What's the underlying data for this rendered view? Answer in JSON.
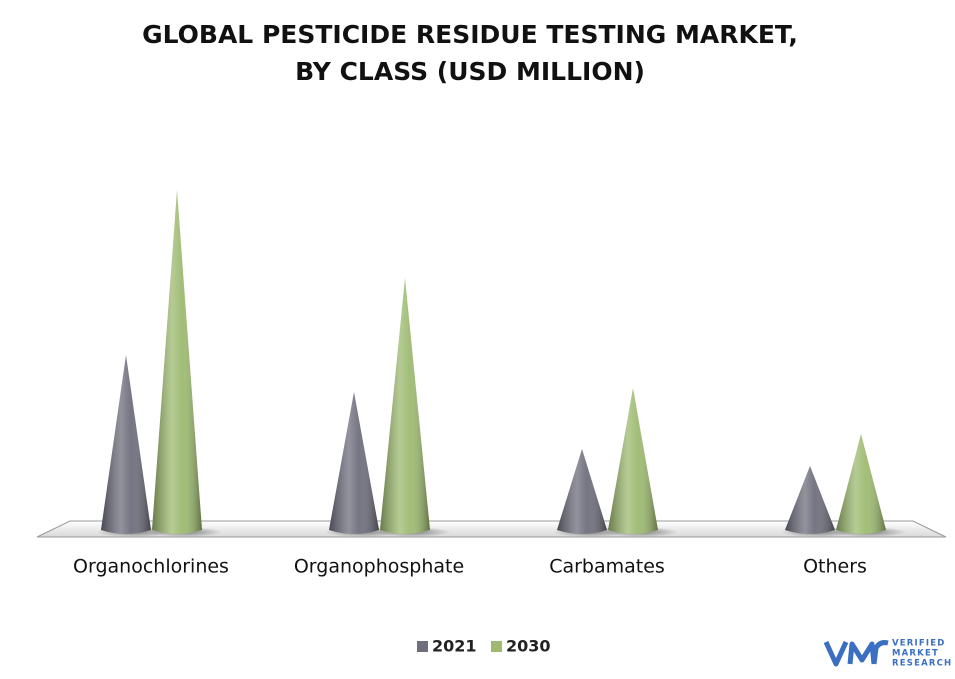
{
  "chart_data": {
    "type": "cone",
    "title": [
      "GLOBAL PESTICIDE RESIDUE TESTING MARKET,",
      "BY CLASS (USD MILLION)"
    ],
    "categories": [
      "Organochlorines",
      "Organophosphate",
      "Carbamates",
      "Others"
    ],
    "series": [
      {
        "name": "2021",
        "color": "#6e6e7c",
        "values": [
          175,
          138,
          81,
          64
        ]
      },
      {
        "name": "2030",
        "color": "#9dba70",
        "values": [
          340,
          252,
          142,
          96
        ]
      }
    ],
    "legend": "bottom"
  },
  "logo": {
    "lines": [
      "VERIFIED",
      "MARKET",
      "RESEARCH"
    ]
  }
}
